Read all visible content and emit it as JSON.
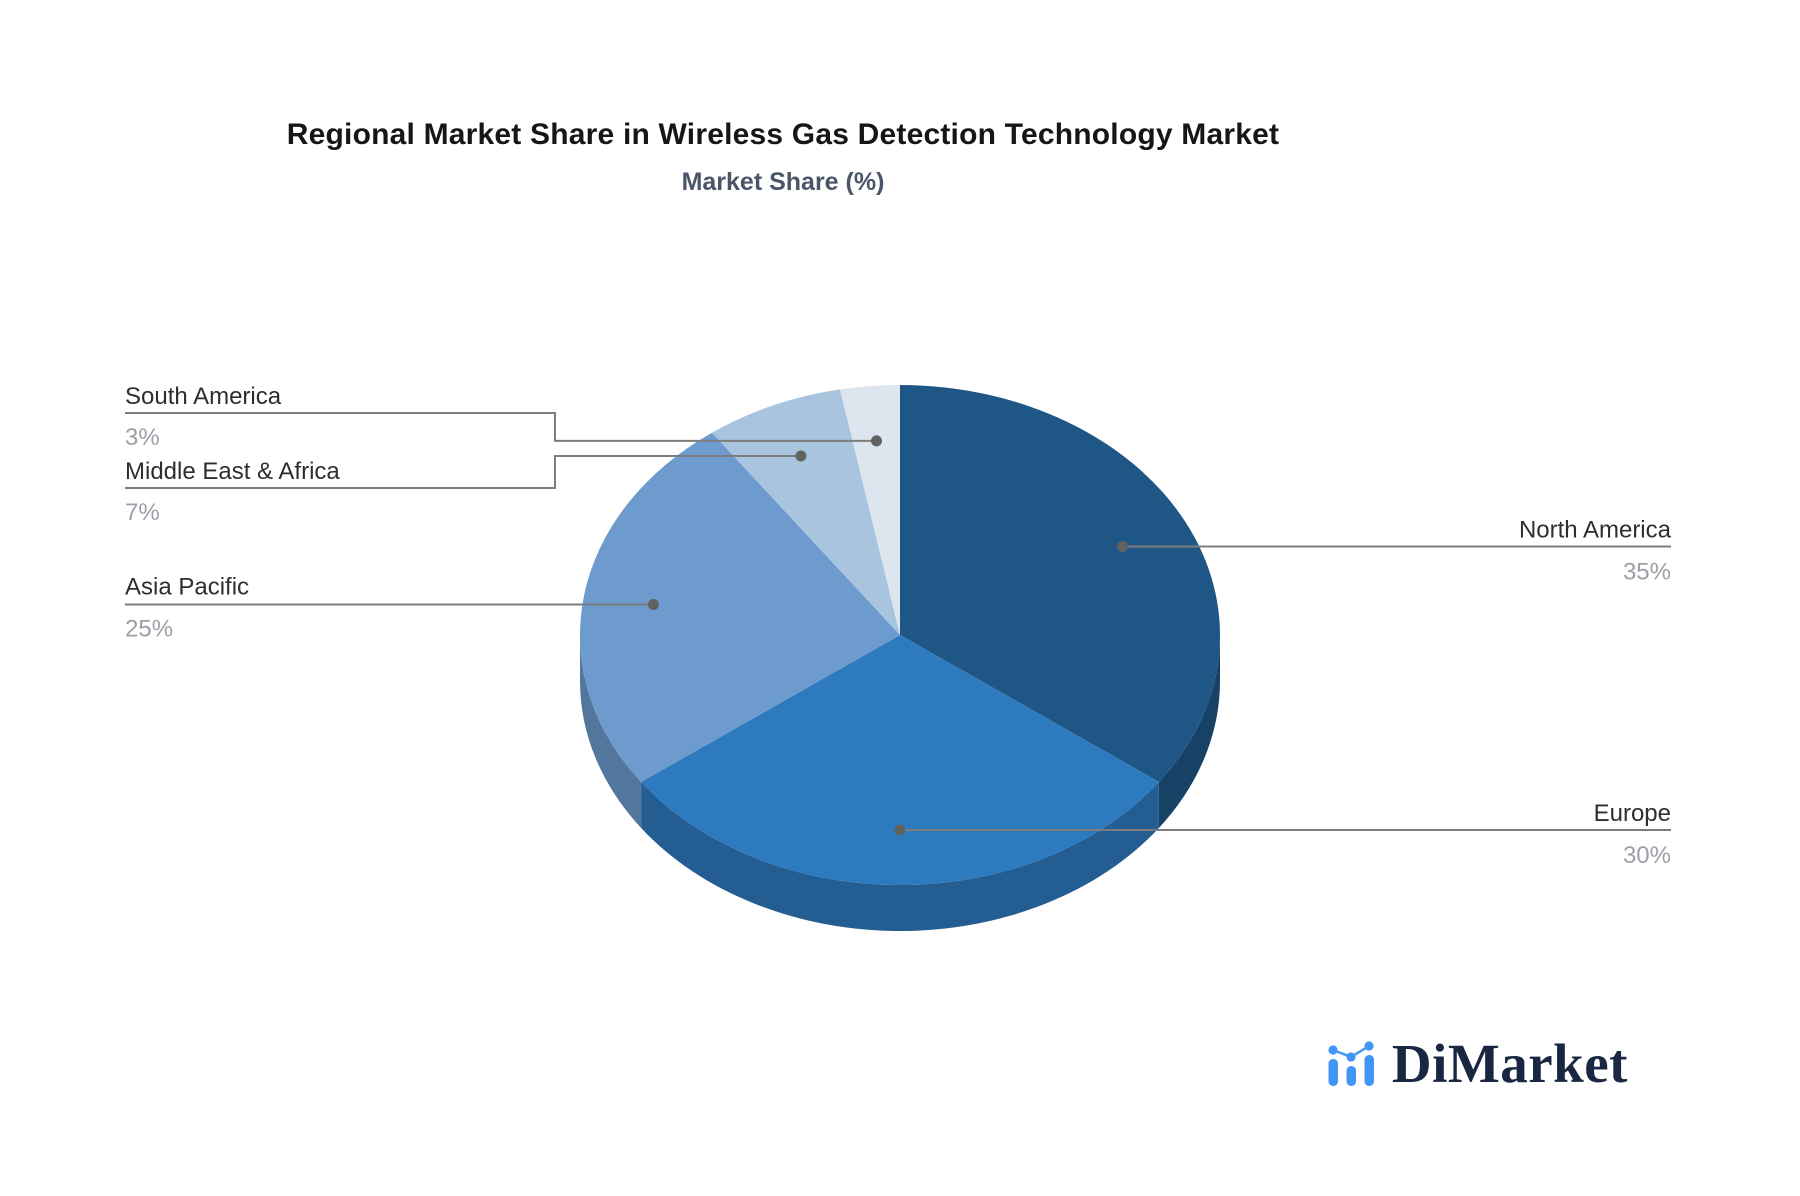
{
  "chart_data": {
    "type": "pie",
    "style": "3d",
    "title": "Regional Market Share in Wireless Gas Detection Technology Market",
    "subtitle": "Market Share (%)",
    "unit": "%",
    "direction": "clockwise",
    "start_angle_deg": 0,
    "legend_position": "callout-labels",
    "slices": [
      {
        "name": "North America",
        "value": 35,
        "value_label": "35%",
        "color": "#1e5786",
        "callout_side": "right"
      },
      {
        "name": "Europe",
        "value": 30,
        "value_label": "30%",
        "color": "#2e7abf",
        "callout_side": "right"
      },
      {
        "name": "Asia Pacific",
        "value": 25,
        "value_label": "25%",
        "color": "#6d9bce",
        "callout_side": "left"
      },
      {
        "name": "Middle East & Africa",
        "value": 7,
        "value_label": "7%",
        "color": "#a9c4df",
        "callout_side": "left-step"
      },
      {
        "name": "South America",
        "value": 3,
        "value_label": "3%",
        "color": "#dde6ef",
        "callout_side": "left-step"
      }
    ],
    "leader_line_color": "#7d7d7d",
    "marker_color": "#616161",
    "label_color": "#2e2e2e",
    "value_color": "#9ba0a6"
  },
  "logo": {
    "text": "DiMarket",
    "icon": "bar-chart-icon",
    "icon_color": "#4195f4",
    "text_color": "#1a2742"
  }
}
